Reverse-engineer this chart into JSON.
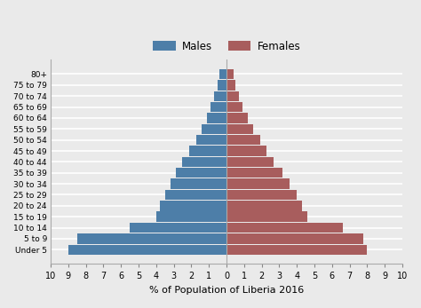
{
  "age_groups": [
    "Under 5",
    "5 to 9",
    "10 to 14",
    "15 to 19",
    "20 to 24",
    "25 to 29",
    "30 to 34",
    "35 to 39",
    "40 to 44",
    "45 to 49",
    "50 to 54",
    "55 to 59",
    "60 to 64",
    "65 to 69",
    "70 to 74",
    "75 to 79",
    "80+"
  ],
  "males": [
    9.0,
    8.5,
    5.5,
    4.0,
    3.8,
    3.5,
    3.2,
    2.9,
    2.5,
    2.1,
    1.7,
    1.4,
    1.1,
    0.9,
    0.7,
    0.5,
    0.4
  ],
  "females": [
    8.0,
    7.8,
    6.6,
    4.6,
    4.3,
    4.0,
    3.6,
    3.2,
    2.7,
    2.3,
    1.9,
    1.5,
    1.2,
    0.9,
    0.7,
    0.5,
    0.4
  ],
  "male_color": "#4d7ea8",
  "female_color": "#a85d5d",
  "xlabel": "% of Population of Liberia 2016",
  "xlim": 10,
  "background_color": "#eaeaea",
  "grid_color": "#ffffff",
  "legend_labels": [
    "Males",
    "Females"
  ]
}
